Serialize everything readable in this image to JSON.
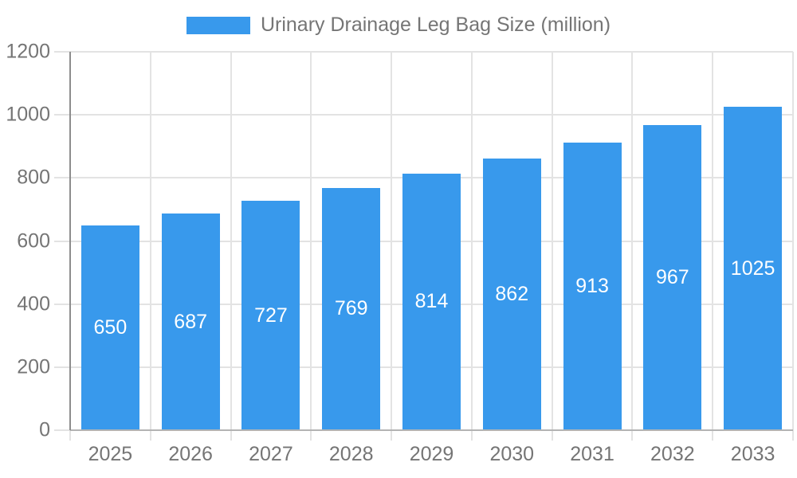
{
  "legend": {
    "label": "Urinary Drainage Leg Bag Size (million)"
  },
  "chart_data": {
    "type": "bar",
    "title": "Urinary Drainage Leg Bag Size (million)",
    "series_name": "Urinary Drainage Leg Bag Size (million)",
    "categories": [
      "2025",
      "2026",
      "2027",
      "2028",
      "2029",
      "2030",
      "2031",
      "2032",
      "2033"
    ],
    "values": [
      650,
      687,
      727,
      769,
      814,
      862,
      913,
      967,
      1025
    ],
    "xlabel": "",
    "ylabel": "",
    "ylim": [
      0,
      1200
    ],
    "yticks": [
      0,
      200,
      400,
      600,
      800,
      1000,
      1200
    ],
    "grid": true,
    "bar_labels_shown": true,
    "legend_position": "top-center",
    "colors": {
      "bar": "#3899EC",
      "bar_label": "#FFFFFF",
      "axis_text": "#757575",
      "gridline": "#E3E3E3",
      "axis_line": "#8D8D8D",
      "baseline": "#B3B3B3",
      "background": "#FFFFFF"
    }
  }
}
